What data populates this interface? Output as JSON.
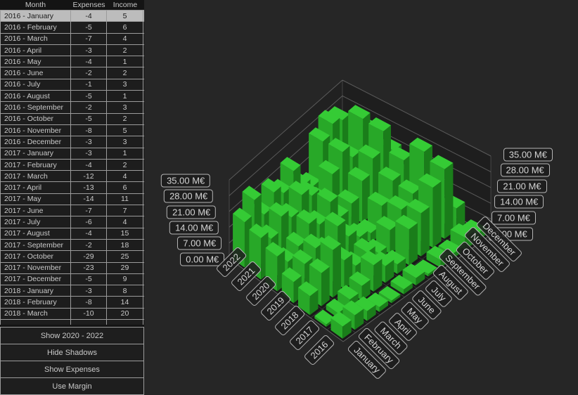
{
  "table": {
    "columns": [
      "Month",
      "Expenses",
      "Income"
    ],
    "selected_index": 0,
    "rows": [
      {
        "month": "2016 - January",
        "expenses": "-4",
        "income": "5"
      },
      {
        "month": "2016 - February",
        "expenses": "-5",
        "income": "6"
      },
      {
        "month": "2016 - March",
        "expenses": "-7",
        "income": "4"
      },
      {
        "month": "2016 - April",
        "expenses": "-3",
        "income": "2"
      },
      {
        "month": "2016 - May",
        "expenses": "-4",
        "income": "1"
      },
      {
        "month": "2016 - June",
        "expenses": "-2",
        "income": "2"
      },
      {
        "month": "2016 - July",
        "expenses": "-1",
        "income": "3"
      },
      {
        "month": "2016 - August",
        "expenses": "-5",
        "income": "1"
      },
      {
        "month": "2016 - September",
        "expenses": "-2",
        "income": "3"
      },
      {
        "month": "2016 - October",
        "expenses": "-5",
        "income": "2"
      },
      {
        "month": "2016 - November",
        "expenses": "-8",
        "income": "5"
      },
      {
        "month": "2016 - December",
        "expenses": "-3",
        "income": "3"
      },
      {
        "month": "2017 - January",
        "expenses": "-3",
        "income": "1"
      },
      {
        "month": "2017 - February",
        "expenses": "-4",
        "income": "2"
      },
      {
        "month": "2017 - March",
        "expenses": "-12",
        "income": "4"
      },
      {
        "month": "2017 - April",
        "expenses": "-13",
        "income": "6"
      },
      {
        "month": "2017 - May",
        "expenses": "-14",
        "income": "11"
      },
      {
        "month": "2017 - June",
        "expenses": "-7",
        "income": "7"
      },
      {
        "month": "2017 - July",
        "expenses": "-6",
        "income": "4"
      },
      {
        "month": "2017 - August",
        "expenses": "-4",
        "income": "15"
      },
      {
        "month": "2017 - September",
        "expenses": "-2",
        "income": "18"
      },
      {
        "month": "2017 - October",
        "expenses": "-29",
        "income": "25"
      },
      {
        "month": "2017 - November",
        "expenses": "-23",
        "income": "29"
      },
      {
        "month": "2017 - December",
        "expenses": "-5",
        "income": "9"
      },
      {
        "month": "2018 - January",
        "expenses": "-3",
        "income": "8"
      },
      {
        "month": "2018 - February",
        "expenses": "-8",
        "income": "14"
      },
      {
        "month": "2018 - March",
        "expenses": "-10",
        "income": "20"
      }
    ]
  },
  "buttons": [
    "Show 2020 - 2022",
    "Hide Shadows",
    "Show Expenses",
    "Use Margin"
  ],
  "chart_data": {
    "type": "bar",
    "projection": "3d",
    "unit": "M€",
    "title": "",
    "value_axis_format": "%.2f M€",
    "value_range": [
      0,
      35
    ],
    "value_tick_step": 7,
    "value_ticks": [
      "0.00 M€",
      "7.00 M€",
      "14.00 M€",
      "21.00 M€",
      "28.00 M€",
      "35.00 M€"
    ],
    "categories": [
      "January",
      "February",
      "March",
      "April",
      "May",
      "June",
      "July",
      "August",
      "September",
      "October",
      "November",
      "December"
    ],
    "rows": [
      "2016",
      "2017",
      "2018",
      "2019",
      "2020",
      "2021",
      "2022"
    ],
    "series": [
      {
        "name": "Income",
        "values": [
          [
            5,
            6,
            4,
            2,
            1,
            2,
            3,
            1,
            3,
            2,
            5,
            3
          ],
          [
            1,
            2,
            4,
            6,
            11,
            7,
            4,
            15,
            18,
            25,
            29,
            9
          ],
          [
            8,
            14,
            20,
            12,
            6,
            8,
            4,
            10,
            15,
            18,
            32,
            12
          ],
          [
            9,
            13,
            16,
            11,
            18,
            10,
            6,
            4,
            12,
            19,
            24,
            14
          ],
          [
            15,
            9,
            12,
            18,
            14,
            20,
            10,
            12,
            18,
            24,
            32,
            20
          ],
          [
            18,
            14,
            20,
            16,
            22,
            18,
            12,
            20,
            26,
            20,
            33,
            24
          ],
          [
            20,
            26,
            16,
            22,
            18,
            24,
            14,
            10,
            26,
            30,
            28,
            22
          ]
        ]
      }
    ],
    "legend": "none",
    "shadows": "on",
    "colors": {
      "background": "#262626",
      "floor": "#191919",
      "wall_left": "#212121",
      "wall_right": "#1e1e1e",
      "grid_line": "#8a8a8a",
      "floor_grid": "#383838",
      "bar_top": "#35cb35",
      "bar_left": "#28a828",
      "bar_right": "#1a7d1a",
      "label_border": "#b5b5b5",
      "label_text": "#d4d4d4"
    }
  }
}
